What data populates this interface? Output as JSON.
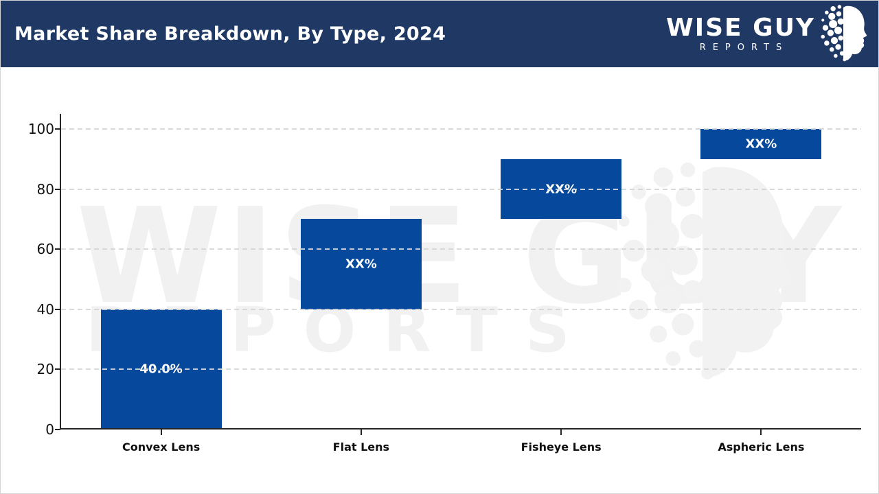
{
  "header": {
    "title": "Market Share Breakdown, By Type, 2024",
    "logo": {
      "line1": "WISE GUY",
      "line2": "REPORTS"
    }
  },
  "watermark": {
    "line1": "WISE GUY",
    "line2": "REPORTS"
  },
  "colors": {
    "header_bg": "#1f3864",
    "bar": "#05489c",
    "bar_label": "#ffffff",
    "axis": "#262626",
    "grid": "#d9d9d9",
    "tick_label": "#111111",
    "watermark": "#f1f1f1"
  },
  "chart_data": {
    "type": "bar",
    "subtype": "waterfall",
    "title": "Market Share Breakdown, By Type, 2024",
    "xlabel": "",
    "ylabel": "",
    "ylim": [
      0,
      100
    ],
    "yticks": [
      0,
      20,
      40,
      60,
      80,
      100
    ],
    "grid": "horizontal-dashed",
    "legend": "none",
    "categories": [
      "Convex Lens",
      "Flat Lens",
      "Fisheye Lens",
      "Aspheric Lens"
    ],
    "segments": [
      {
        "category": "Convex Lens",
        "start": 0,
        "end": 40,
        "label": "40.0%"
      },
      {
        "category": "Flat Lens",
        "start": 40,
        "end": 70,
        "label": "XX%"
      },
      {
        "category": "Fisheye Lens",
        "start": 70,
        "end": 90,
        "label": "XX%"
      },
      {
        "category": "Aspheric Lens",
        "start": 90,
        "end": 100,
        "label": "XX%"
      }
    ]
  }
}
